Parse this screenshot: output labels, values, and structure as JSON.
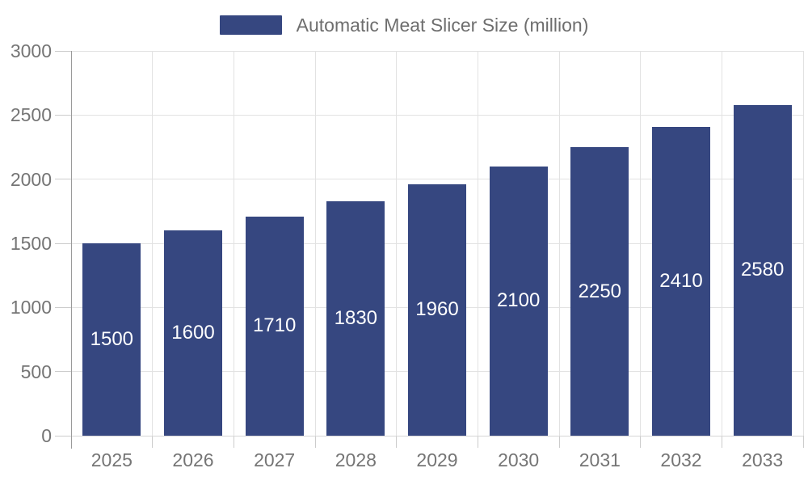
{
  "chart_data": {
    "type": "bar",
    "title": "",
    "legend": {
      "position": "top",
      "label": "Automatic Meat Slicer Size (million)"
    },
    "categories": [
      "2025",
      "2026",
      "2027",
      "2028",
      "2029",
      "2030",
      "2031",
      "2032",
      "2033"
    ],
    "series": [
      {
        "name": "Automatic Meat Slicer Size (million)",
        "values": [
          1500,
          1600,
          1710,
          1830,
          1960,
          2100,
          2250,
          2410,
          2580
        ]
      }
    ],
    "value_labels_shown": true,
    "xlabel": "",
    "ylabel": "",
    "ylim": [
      0,
      3000
    ],
    "yticks": [
      0,
      500,
      1000,
      1500,
      2000,
      2500,
      3000
    ],
    "grid": true,
    "colors": {
      "bar": "#364780",
      "bar_value_label": "#ffffff",
      "axis_text": "#757575",
      "legend_text": "#6e6e6e",
      "gridline": "#e2e2e2",
      "axis_line_y": "#9a9a9a",
      "axis_line_x": "#d6d6d6",
      "tick": "#cccccc",
      "background": "#ffffff"
    }
  }
}
